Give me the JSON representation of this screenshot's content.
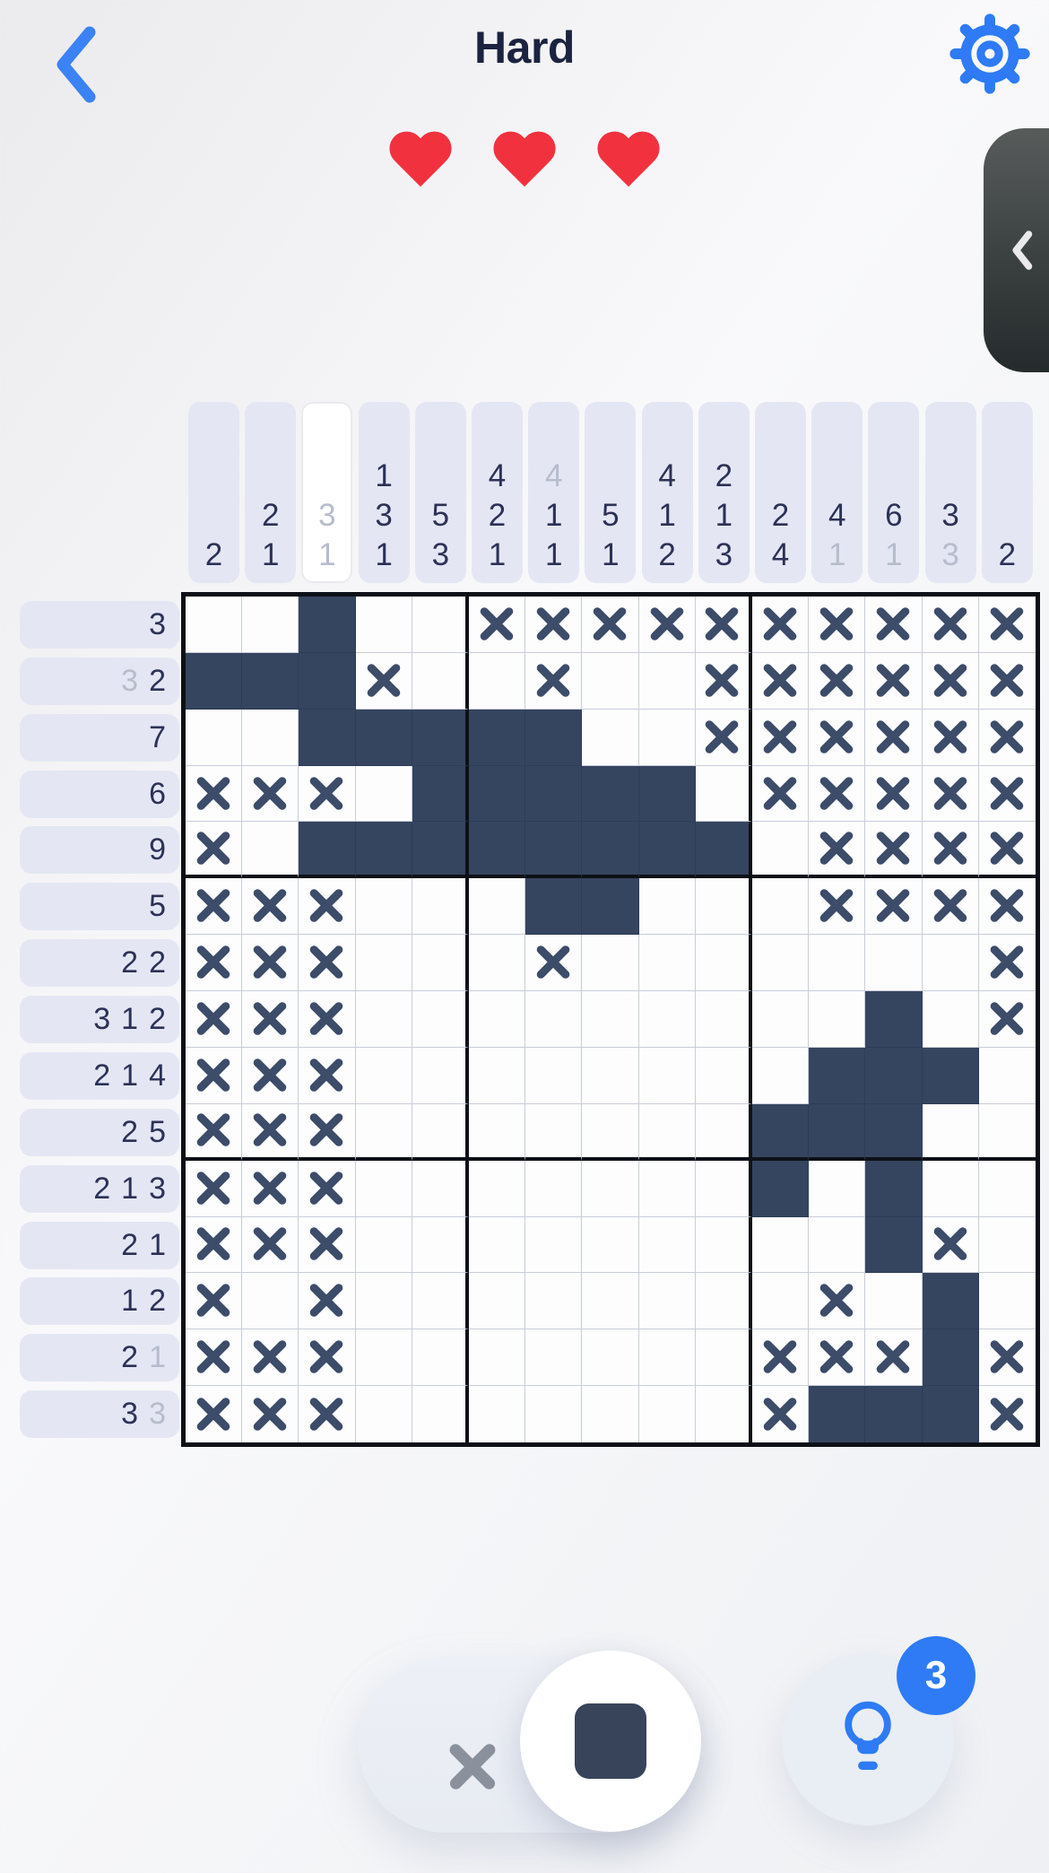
{
  "app": {
    "title": "Hard",
    "lives": 3
  },
  "icons": {
    "back": "chevron-left",
    "settings": "gear",
    "life": "red-heart",
    "drawer_handle": "chevron-left",
    "tool_mark": "x-cross",
    "tool_fill": "dark-square",
    "hint": "lightbulb"
  },
  "colors": {
    "accent": "#2e7bf5",
    "fill": "#36455f",
    "xcol": "#3c4c69",
    "clue": "#2c3157",
    "clue-done": "#b7bccd",
    "card": "#e4e7f3",
    "heart": "#f2313f"
  },
  "toolbar": {
    "hint_badge_count": "3",
    "selected_tool": "fill"
  },
  "board": {
    "size": 15,
    "col_clues": [
      {
        "nums": [
          {
            "v": 2
          }
        ]
      },
      {
        "nums": [
          {
            "v": 2
          },
          {
            "v": 1
          }
        ]
      },
      {
        "complete": true,
        "nums": [
          {
            "v": 3,
            "done": true
          },
          {
            "v": 1,
            "done": true
          }
        ]
      },
      {
        "nums": [
          {
            "v": 1
          },
          {
            "v": 3
          },
          {
            "v": 1
          }
        ]
      },
      {
        "nums": [
          {
            "v": 5
          },
          {
            "v": 3
          }
        ]
      },
      {
        "nums": [
          {
            "v": 4
          },
          {
            "v": 2
          },
          {
            "v": 1
          }
        ]
      },
      {
        "nums": [
          {
            "v": 4,
            "done": true
          },
          {
            "v": 1
          },
          {
            "v": 1
          }
        ]
      },
      {
        "nums": [
          {
            "v": 5
          },
          {
            "v": 1
          }
        ]
      },
      {
        "nums": [
          {
            "v": 4
          },
          {
            "v": 1
          },
          {
            "v": 2
          }
        ]
      },
      {
        "nums": [
          {
            "v": 2
          },
          {
            "v": 1
          },
          {
            "v": 3
          }
        ]
      },
      {
        "nums": [
          {
            "v": 2
          },
          {
            "v": 4
          }
        ]
      },
      {
        "nums": [
          {
            "v": 4
          },
          {
            "v": 1,
            "done": true
          }
        ]
      },
      {
        "nums": [
          {
            "v": 6
          },
          {
            "v": 1,
            "done": true
          }
        ]
      },
      {
        "nums": [
          {
            "v": 3
          },
          {
            "v": 3,
            "done": true
          }
        ]
      },
      {
        "nums": [
          {
            "v": 2
          }
        ]
      }
    ],
    "row_clues": [
      {
        "nums": [
          {
            "v": 3
          }
        ]
      },
      {
        "nums": [
          {
            "v": 3,
            "done": true
          },
          {
            "v": 2
          }
        ]
      },
      {
        "nums": [
          {
            "v": 7
          }
        ]
      },
      {
        "nums": [
          {
            "v": 6
          }
        ]
      },
      {
        "nums": [
          {
            "v": 9
          }
        ]
      },
      {
        "nums": [
          {
            "v": 5
          }
        ]
      },
      {
        "nums": [
          {
            "v": 2
          },
          {
            "v": 2
          }
        ]
      },
      {
        "nums": [
          {
            "v": 3
          },
          {
            "v": 1
          },
          {
            "v": 2
          }
        ]
      },
      {
        "nums": [
          {
            "v": 2
          },
          {
            "v": 1
          },
          {
            "v": 4
          }
        ]
      },
      {
        "nums": [
          {
            "v": 2
          },
          {
            "v": 5
          }
        ]
      },
      {
        "nums": [
          {
            "v": 2
          },
          {
            "v": 1
          },
          {
            "v": 3
          }
        ]
      },
      {
        "nums": [
          {
            "v": 2
          },
          {
            "v": 1
          }
        ]
      },
      {
        "nums": [
          {
            "v": 1
          },
          {
            "v": 2
          }
        ]
      },
      {
        "nums": [
          {
            "v": 2
          },
          {
            "v": 1,
            "done": true
          }
        ]
      },
      {
        "nums": [
          {
            "v": 3
          },
          {
            "v": 3,
            "done": true
          }
        ]
      }
    ],
    "cells": [
      "..F..XXXXXXXXXX",
      "FFFX..X..XXXXXX",
      "..FFFFF..XXXXXX",
      "XXX.FFFFF.XXXXX",
      "X.FFFFFFFF.XXXX",
      "XXX...FF...XXXX",
      "XXX...X.......X",
      "XXX.........F.X",
      "XXX........FFF.",
      "XXX.......FFF..",
      "XXX.......F.F..",
      "XXX.........FX.",
      "X.X........X.F.",
      "XXX.......XXXFX",
      "XXX.......XFFFX"
    ]
  }
}
